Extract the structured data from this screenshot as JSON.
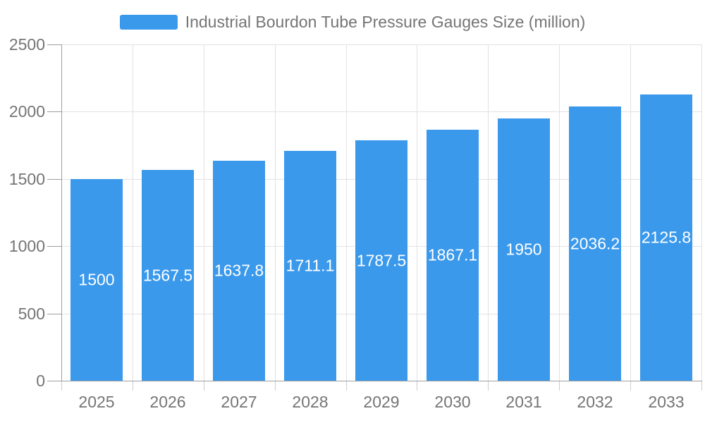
{
  "chart_data": {
    "type": "bar",
    "title": "Industrial Bourdon Tube Pressure Gauges Size (million)",
    "categories": [
      "2025",
      "2026",
      "2027",
      "2028",
      "2029",
      "2030",
      "2031",
      "2032",
      "2033"
    ],
    "values": [
      1500,
      1567.5,
      1637.8,
      1711.1,
      1787.5,
      1867.1,
      1950,
      2036.2,
      2125.8
    ],
    "bar_labels": [
      "1500",
      "1567.5",
      "1637.8",
      "1711.1",
      "1787.5",
      "1867.1",
      "1950",
      "2036.2",
      "2125.8"
    ],
    "xlabel": "",
    "ylabel": "",
    "ylim": [
      0,
      2500
    ],
    "yticks": [
      0,
      500,
      1000,
      1500,
      2000,
      2500
    ],
    "grid": true,
    "legend_position": "top",
    "bar_label_position": "inside-center",
    "colors": {
      "bar": "#3B99EC",
      "bar_label_text": "#FFFFFF",
      "axis_text": "#757575",
      "axis_line": "#9E9E9E",
      "tick": "#CCCCCC",
      "grid_line": "#E2E2E2",
      "background": "#FFFFFF"
    }
  }
}
